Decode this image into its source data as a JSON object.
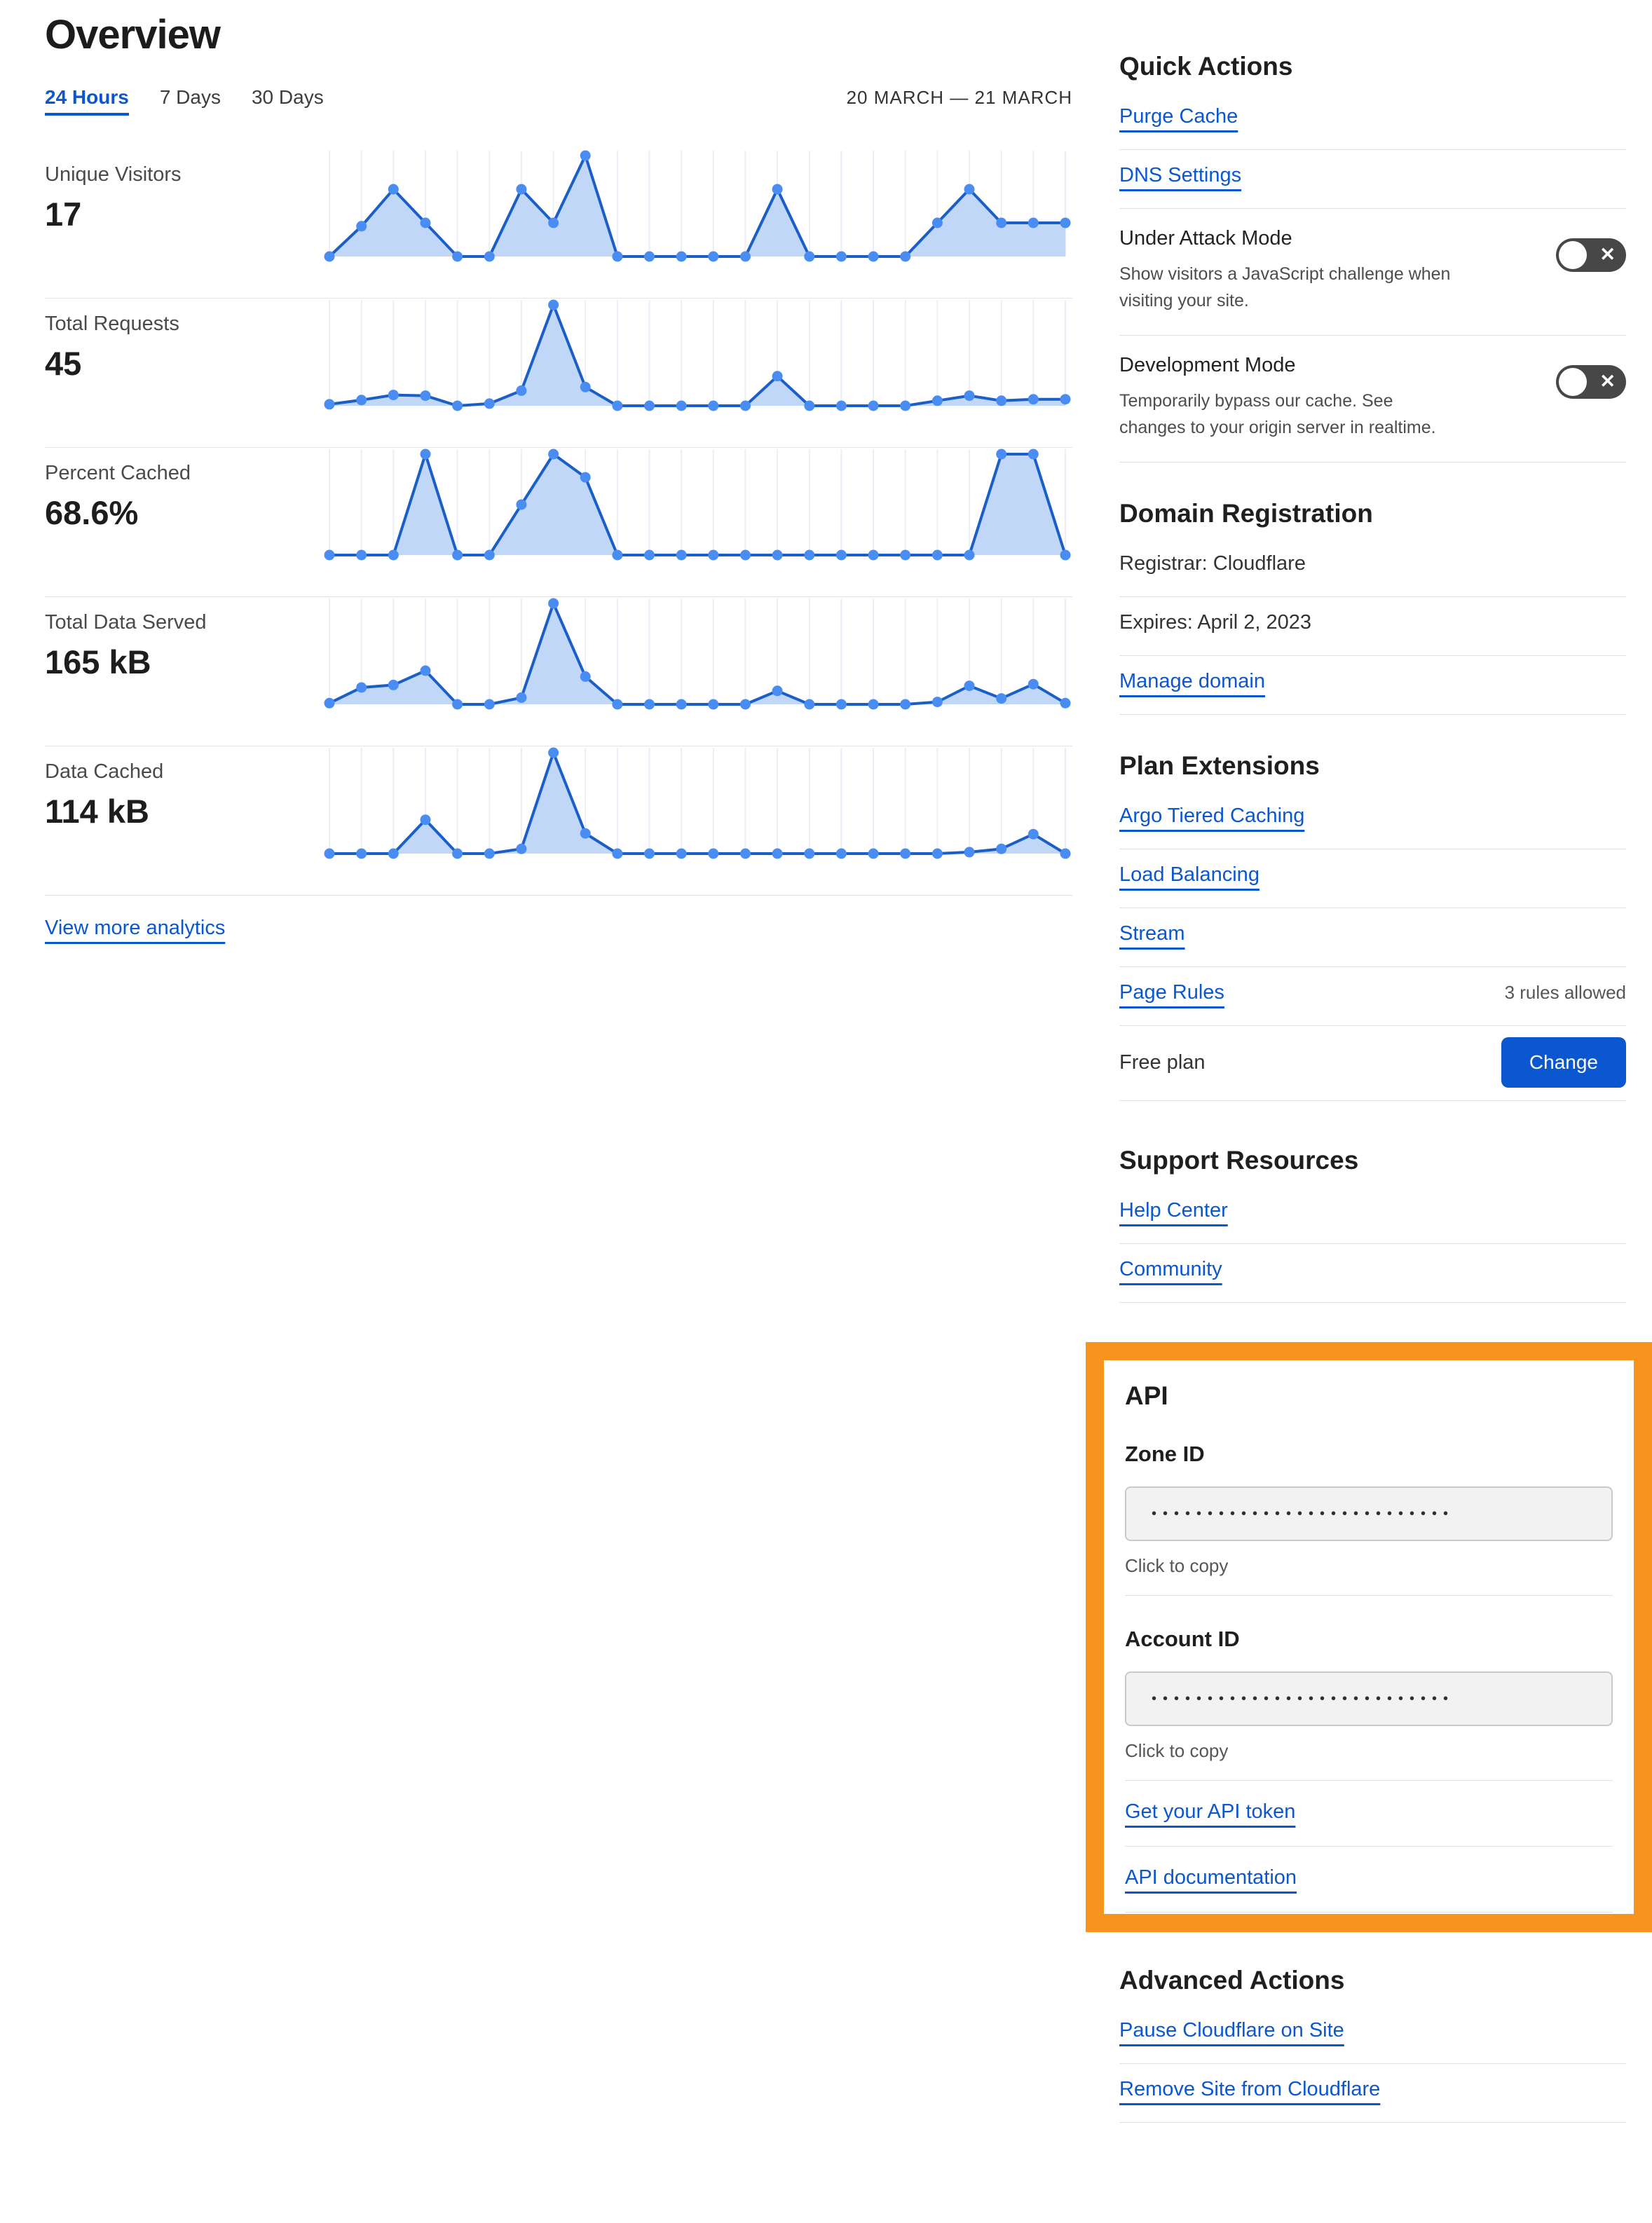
{
  "header": {
    "title": "Overview",
    "tabs": [
      {
        "label": "24 Hours",
        "active": true
      },
      {
        "label": "7 Days",
        "active": false
      },
      {
        "label": "30 Days",
        "active": false
      }
    ],
    "date_range": "20 MARCH — 21 MARCH"
  },
  "metrics": [
    {
      "label": "Unique Visitors",
      "value": "17"
    },
    {
      "label": "Total Requests",
      "value": "45"
    },
    {
      "label": "Percent Cached",
      "value": "68.6%"
    },
    {
      "label": "Total Data Served",
      "value": "165 kB"
    },
    {
      "label": "Data Cached",
      "value": "114 kB"
    }
  ],
  "view_more_label": "View more analytics",
  "chart_data": [
    {
      "type": "area",
      "title": "Unique Visitors",
      "total_label": "17",
      "x_range": "20 MARCH — 21 MARCH, hourly points",
      "grid": "vertical-only",
      "legend": "none",
      "ymax": 3,
      "values": [
        0,
        0.9,
        2,
        1,
        0,
        0,
        2,
        1,
        3,
        0,
        0,
        0,
        0,
        0,
        2,
        0,
        0,
        0,
        0,
        1,
        2,
        1,
        1,
        1
      ]
    },
    {
      "type": "area",
      "title": "Total Requests",
      "total_label": "45",
      "x_range": "20 MARCH — 21 MARCH, hourly points",
      "grid": "vertical-only",
      "legend": "none",
      "ymax": 14,
      "values": [
        0.2,
        0.8,
        1.5,
        1.4,
        0,
        0.3,
        2.1,
        14,
        2.6,
        0,
        0,
        0,
        0,
        0,
        4.1,
        0,
        0,
        0,
        0,
        0.7,
        1.4,
        0.7,
        0.9,
        0.9
      ]
    },
    {
      "type": "area",
      "title": "Percent Cached",
      "total_label": "68.6%",
      "x_range": "20 MARCH — 21 MARCH, hourly points",
      "grid": "vertical-only",
      "legend": "none",
      "ymax": 100,
      "values": [
        0,
        0,
        0,
        100,
        0,
        0,
        50,
        100,
        77,
        0,
        0,
        0,
        0,
        0,
        0,
        0,
        0,
        0,
        0,
        0,
        0,
        100,
        100,
        0
      ]
    },
    {
      "type": "area",
      "title": "Total Data Served (kB)",
      "total_label": "165 kB",
      "x_range": "20 MARCH — 21 MARCH, hourly points",
      "grid": "vertical-only",
      "legend": "none",
      "ymax": 60,
      "values": [
        0.7,
        10,
        11.5,
        20,
        0,
        0,
        4,
        60,
        16.5,
        0,
        0,
        0,
        0,
        0,
        8,
        0,
        0,
        0,
        0,
        1.4,
        11,
        3.5,
        12,
        0.7
      ]
    },
    {
      "type": "area",
      "title": "Data Cached (kB)",
      "total_label": "114 kB",
      "x_range": "20 MARCH — 21 MARCH, hourly points",
      "grid": "vertical-only",
      "legend": "none",
      "ymax": 70,
      "values": [
        0,
        0,
        0,
        23.5,
        0,
        0,
        3.3,
        70,
        14,
        0,
        0,
        0,
        0,
        0,
        0,
        0,
        0,
        0,
        0,
        0,
        1,
        3.3,
        13.5,
        0
      ]
    }
  ],
  "quick_actions": {
    "title": "Quick Actions",
    "purge_cache": "Purge Cache",
    "dns_settings": "DNS Settings",
    "toggles": [
      {
        "title": "Under Attack Mode",
        "description": "Show visitors a JavaScript challenge when visiting your site.",
        "state": "off"
      },
      {
        "title": "Development Mode",
        "description": "Temporarily bypass our cache. See changes to your origin server in realtime.",
        "state": "off"
      }
    ]
  },
  "domain_registration": {
    "title": "Domain Registration",
    "registrar": "Registrar: Cloudflare",
    "expires": "Expires: April 2, 2023",
    "manage_link": "Manage domain"
  },
  "plan_extensions": {
    "title": "Plan Extensions",
    "links": [
      "Argo Tiered Caching",
      "Load Balancing",
      "Stream"
    ],
    "page_rules_link": "Page Rules",
    "page_rules_note": "3 rules allowed",
    "plan_label": "Free plan",
    "change_button": "Change"
  },
  "support_resources": {
    "title": "Support Resources",
    "help_center": "Help Center",
    "community": "Community"
  },
  "api": {
    "title": "API",
    "zone_id_label": "Zone ID",
    "account_id_label": "Account ID",
    "masked_value": "•••••••••••••••••••••••••••",
    "copy_hint": "Click to copy",
    "token_link": "Get your API token",
    "docs_link": "API documentation"
  },
  "advanced_actions": {
    "title": "Advanced Actions",
    "pause_link": "Pause Cloudflare on Site",
    "remove_link": "Remove Site from Cloudflare"
  },
  "colors": {
    "line": "#1a5fc8",
    "dot": "#4a8df2",
    "fill": "#c0d7f7",
    "grid": "#e9eef7",
    "accent_blue": "#0b57cf",
    "button_blue": "#0b57d0",
    "highlight_orange": "#f7941e",
    "toggle_gray": "#474747"
  }
}
